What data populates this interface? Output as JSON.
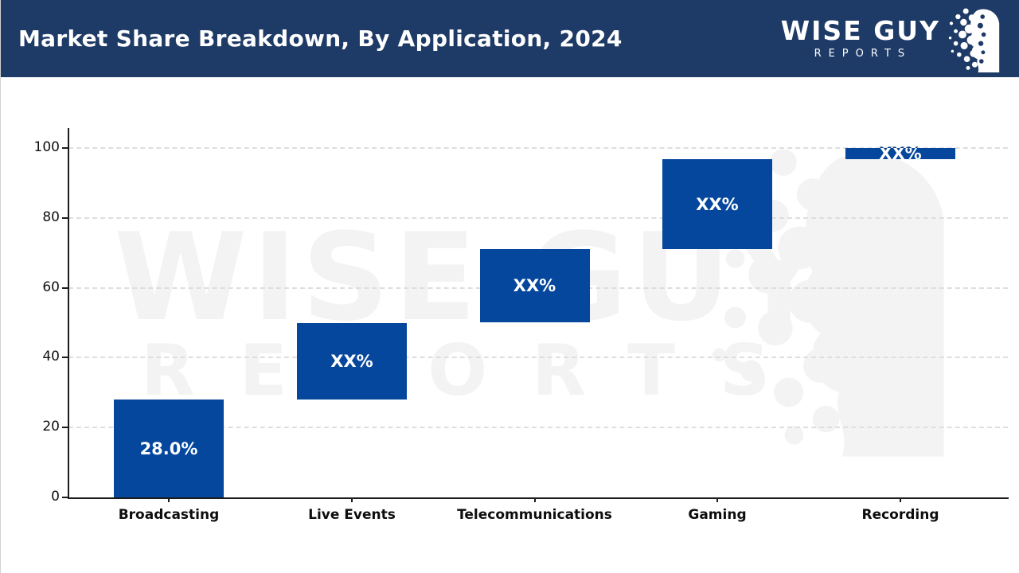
{
  "header": {
    "title": "Market Share Breakdown, By Application, 2024",
    "logo": {
      "line1": "WISE GUY",
      "line2": "REPORTS"
    },
    "bg_color": "#1E3A66"
  },
  "watermark": {
    "line1": "WISE GUY",
    "line2": "REPORTS"
  },
  "colors": {
    "header_bg": "#1E3A66",
    "bar": "#05479D",
    "gridline": "#dedede",
    "axis": "#1c1c1c",
    "bar_label": "#ffffff",
    "watermark": "#f3f3f3"
  },
  "chart_data": {
    "type": "bar",
    "subtype": "waterfall",
    "title": "Market Share Breakdown, By Application, 2024",
    "categories": [
      "Broadcasting",
      "Live Events",
      "Telecommunications",
      "Gaming",
      "Recording"
    ],
    "segments": [
      {
        "category": "Broadcasting",
        "start": 0,
        "end": 28,
        "value": 28,
        "label": "28.0%"
      },
      {
        "category": "Live Events",
        "start": 28,
        "end": 50,
        "value": 22,
        "label": "XX%"
      },
      {
        "category": "Telecommunications",
        "start": 50,
        "end": 71,
        "value": 21,
        "label": "XX%"
      },
      {
        "category": "Gaming",
        "start": 71,
        "end": 96.7,
        "value": 25.7,
        "label": "XX%"
      },
      {
        "category": "Recording",
        "start": 96.7,
        "end": 100,
        "value": 3.3,
        "label": "XX%"
      }
    ],
    "y_ticks": [
      0,
      20,
      40,
      60,
      80,
      100
    ],
    "ylim": [
      0,
      105
    ],
    "xlabel": "",
    "ylabel": "",
    "grid": "horizontal-dashed",
    "legend": "none",
    "bar_color": "#05479D"
  }
}
